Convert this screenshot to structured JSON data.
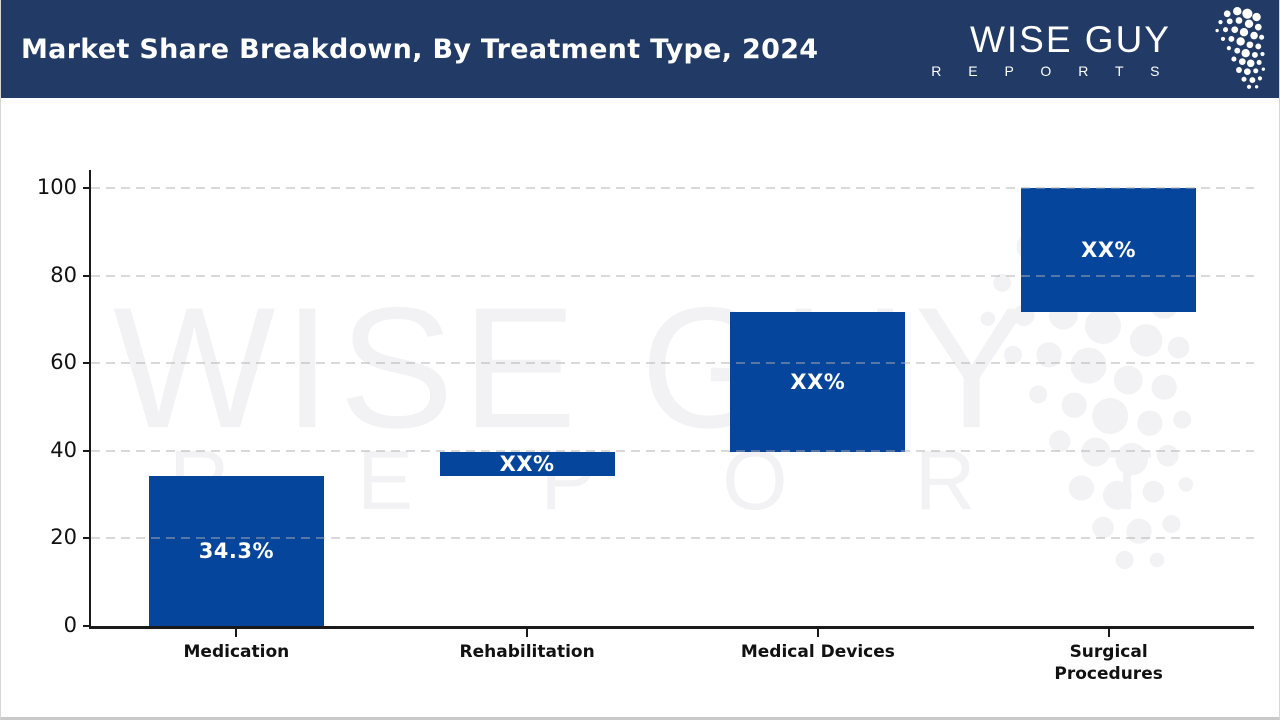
{
  "header": {
    "title": "Market Share Breakdown, By Treatment Type, 2024",
    "logo": {
      "wordmark": "WISE GUY",
      "subtext": "R E P O R T S"
    }
  },
  "watermark": {
    "wordmark": "WISE GUY",
    "subtext": "R E P O R T S"
  },
  "colors": {
    "header_bg": "#213a66",
    "bar": "#05459c",
    "bar_label": "#ffffff",
    "axis": "#1a1a1a",
    "gridline": "#d9d9d9",
    "watermark": "#f2f2f4"
  },
  "chart_data": {
    "type": "bar",
    "subtype": "waterfall",
    "title": "Market Share Breakdown, By Treatment Type, 2024",
    "categories": [
      "Medication",
      "Rehabilitation",
      "Medical Devices",
      "Surgical\nProcedures"
    ],
    "segments": [
      {
        "category": "Medication",
        "start": 0,
        "end": 34.3,
        "label": "34.3%"
      },
      {
        "category": "Rehabilitation",
        "start": 34.3,
        "end": 39.8,
        "label": "XX%"
      },
      {
        "category": "Medical Devices",
        "start": 39.8,
        "end": 71.6,
        "label": "XX%"
      },
      {
        "category": "Surgical Procedures",
        "start": 71.6,
        "end": 100,
        "label": "XX%"
      }
    ],
    "xlabel": "",
    "ylabel": "",
    "ylim": [
      0,
      100
    ],
    "yticks": [
      0,
      20,
      40,
      60,
      80,
      100
    ],
    "grid": true,
    "grid_style": "dashed",
    "legend": false,
    "bar_color": "#05459c",
    "bar_label_color": "#ffffff"
  }
}
